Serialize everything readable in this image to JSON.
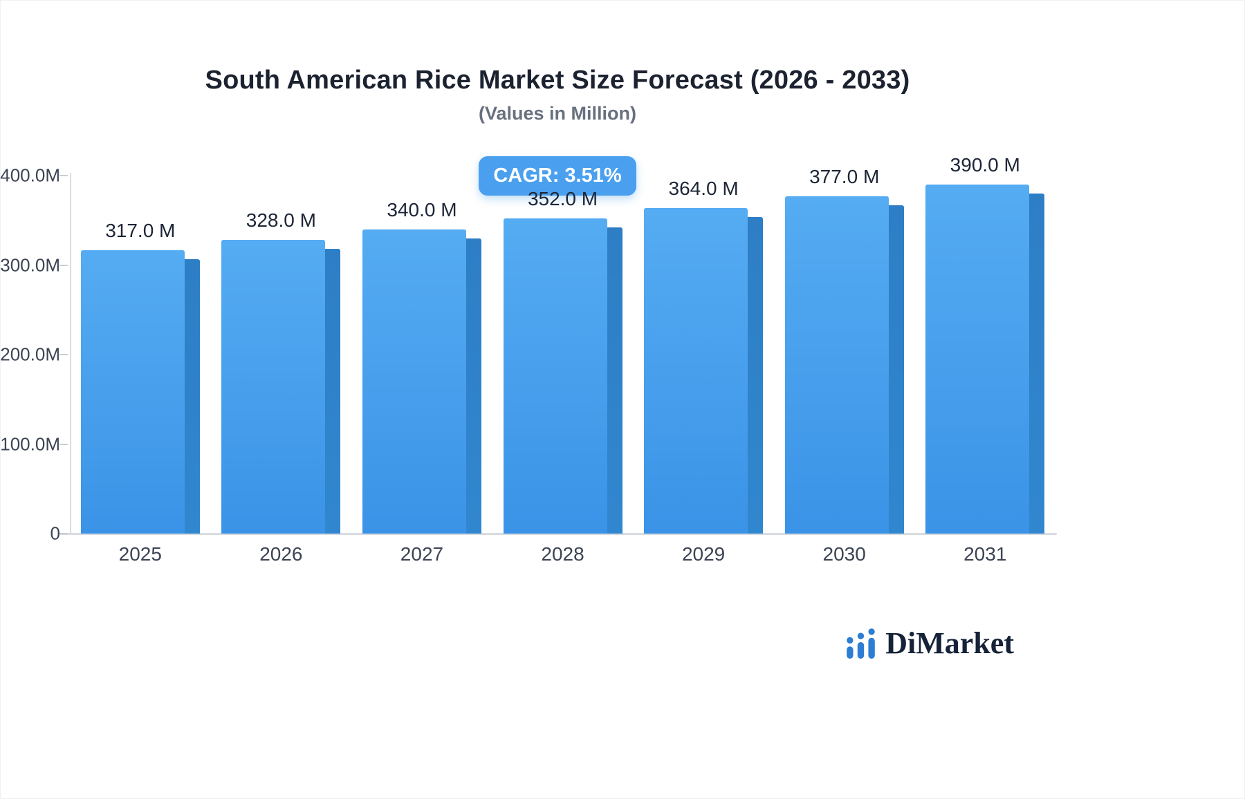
{
  "header": {
    "title": "South American Rice Market Size Forecast (2026 - 2033)",
    "subtitle": "(Values in Million)"
  },
  "badge": {
    "label": "CAGR: 3.51%"
  },
  "brand": {
    "name": "DiMarket",
    "icon": "bar-chart-dots-icon"
  },
  "colors": {
    "bar_main_top": "#55acf2",
    "bar_main_bottom": "#3b93e7",
    "bar_side": "#2d7ec5",
    "badge_bg": "#4aa0ee",
    "axis_line": "#d9dce1",
    "value_label": "#1d2536",
    "axis_text": "#3c4454",
    "title": "#1c2230",
    "subtitle": "#68707f",
    "brand_blue": "#2d7dd2",
    "brand_text": "#152238"
  },
  "chart_data": {
    "type": "bar",
    "title": "South American Rice Market Size Forecast (2026 - 2033)",
    "subtitle": "(Values in Million)",
    "annotation": "CAGR: 3.51%",
    "categories": [
      "2025",
      "2026",
      "2027",
      "2028",
      "2029",
      "2030",
      "2031"
    ],
    "values": [
      317.0,
      328.0,
      340.0,
      352.0,
      364.0,
      377.0,
      390.0
    ],
    "value_labels": [
      "317.0 M",
      "328.0 M",
      "340.0 M",
      "352.0 M",
      "364.0 M",
      "377.0 M",
      "390.0 M"
    ],
    "xlabel": "",
    "ylabel": "",
    "ylim": [
      0,
      400
    ],
    "yticks": [
      {
        "value": 400,
        "label": "400.0M"
      },
      {
        "value": 300,
        "label": "300.0M"
      },
      {
        "value": 200,
        "label": "200.0M"
      },
      {
        "value": 100,
        "label": "100.0M"
      },
      {
        "value": 0,
        "label": "0"
      }
    ],
    "grid": false,
    "legend": false
  }
}
